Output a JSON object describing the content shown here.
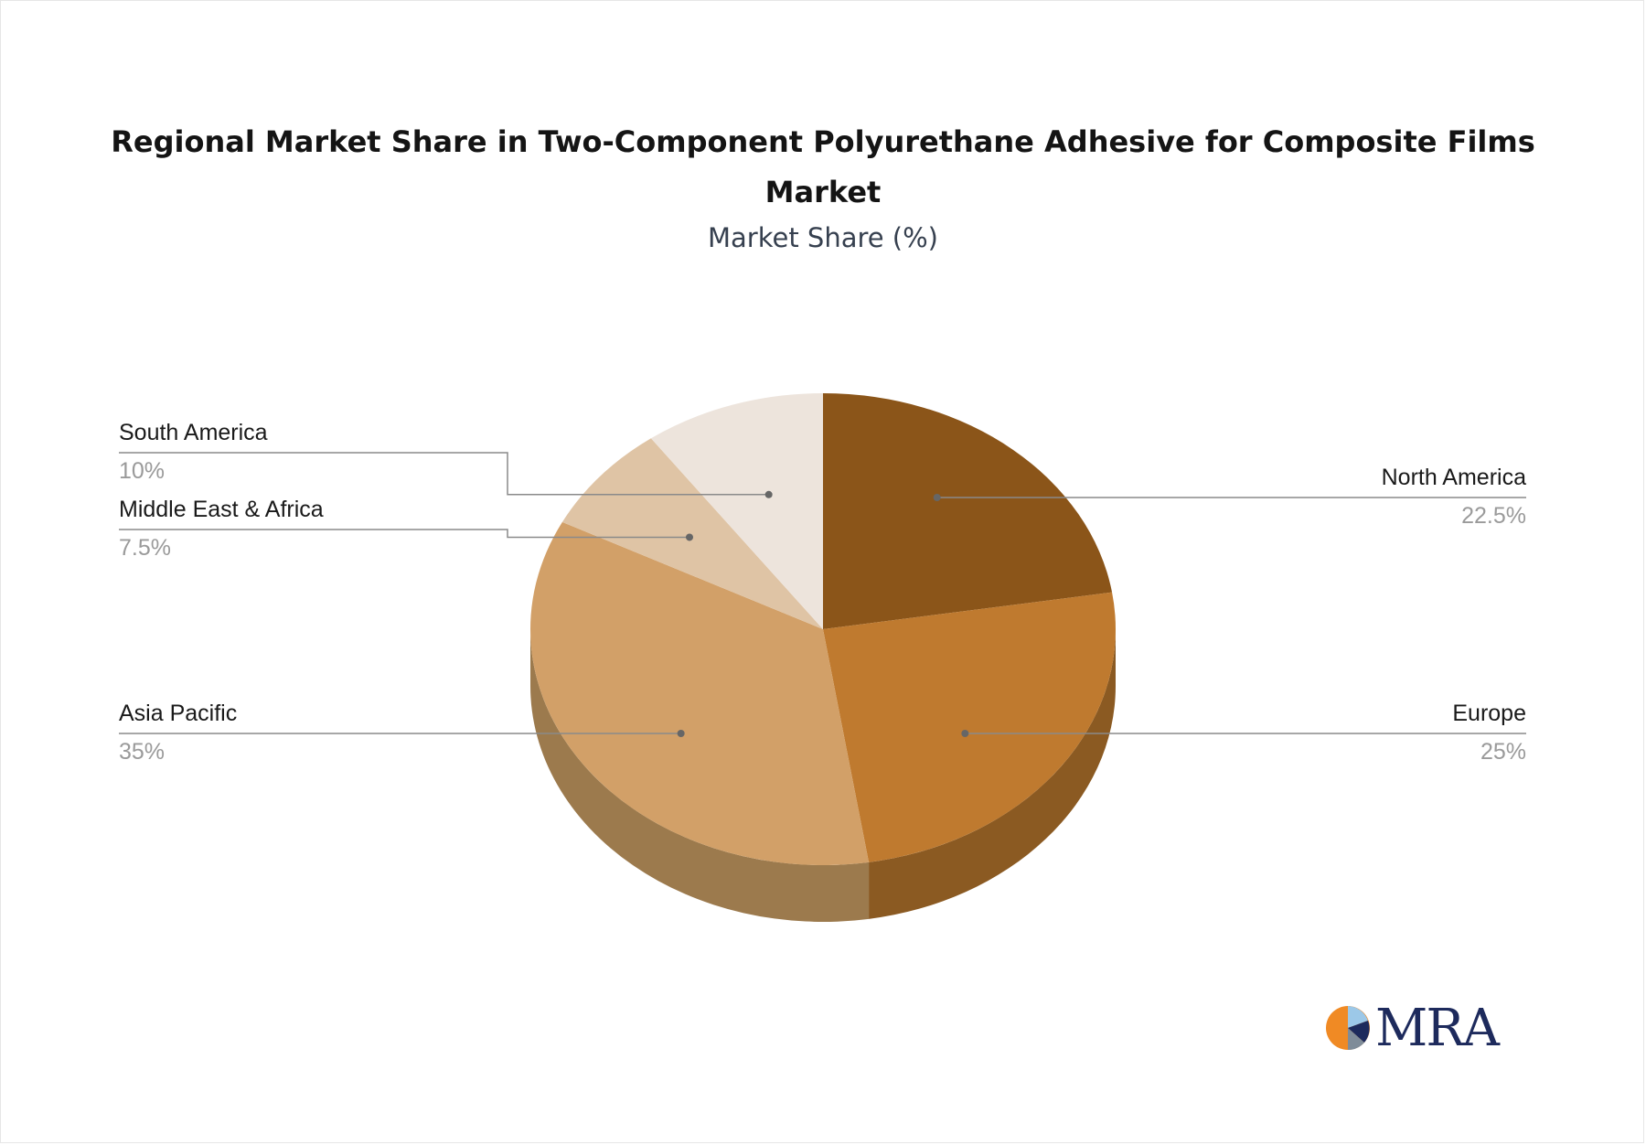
{
  "title": "Regional Market Share in Two-Component Polyurethane Adhesive for Composite Films Market",
  "subtitle": "Market Share (%)",
  "logo_text": "MRA",
  "chart_data": {
    "type": "pie",
    "style": "3d",
    "title": "Regional Market Share in Two-Component Polyurethane Adhesive for Composite Films Market",
    "subtitle": "Market Share (%)",
    "slices": [
      {
        "label": "North America",
        "value": 22.5,
        "display": "22.5%",
        "color": "#8b5519",
        "side_color": "#7a4a15"
      },
      {
        "label": "Europe",
        "value": 25,
        "display": "25%",
        "color": "#bf7a2f",
        "side_color": "#8b5a22"
      },
      {
        "label": "Asia Pacific",
        "value": 35,
        "display": "35%",
        "color": "#d2a068",
        "side_color": "#9c7a4d"
      },
      {
        "label": "Middle East & Africa",
        "value": 7.5,
        "display": "7.5%",
        "color": "#dfc4a5",
        "side_color": "#b39e86"
      },
      {
        "label": "South America",
        "value": 10,
        "display": "10%",
        "color": "#ede4dc",
        "side_color": "#c8c0b8"
      }
    ]
  }
}
